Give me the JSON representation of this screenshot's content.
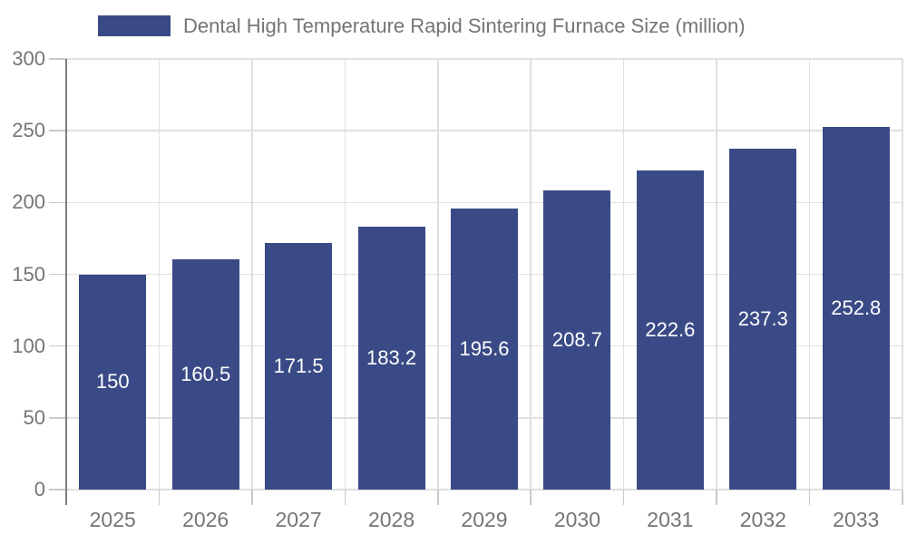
{
  "legend": {
    "label": "Dental High Temperature Rapid Sintering Furnace Size (million)"
  },
  "chart_data": {
    "type": "bar",
    "title": "Dental High Temperature Rapid Sintering Furnace Size (million)",
    "categories": [
      "2025",
      "2026",
      "2027",
      "2028",
      "2029",
      "2030",
      "2031",
      "2032",
      "2033"
    ],
    "values": [
      150,
      160.5,
      171.5,
      183.2,
      195.6,
      208.7,
      222.6,
      237.3,
      252.8
    ],
    "bar_value_labels": [
      "150",
      "160.5",
      "171.5",
      "183.2",
      "195.6",
      "208.7",
      "222.6",
      "237.3",
      "252.8"
    ],
    "xlabel": "",
    "ylabel": "",
    "ylim": [
      0,
      300
    ],
    "yticks": [
      0,
      50,
      100,
      150,
      200,
      250,
      300
    ],
    "grid": true,
    "legend_position": "top",
    "colors": {
      "bar": "#3A4A86",
      "value_label": "#FFFFFF",
      "axis_line": "#7E7E7E",
      "gridline": "#E0E0E0",
      "tick": "#C9C9C9",
      "axis_label": "#757575",
      "legend_text": "#757575",
      "background": "#FFFFFF"
    }
  }
}
